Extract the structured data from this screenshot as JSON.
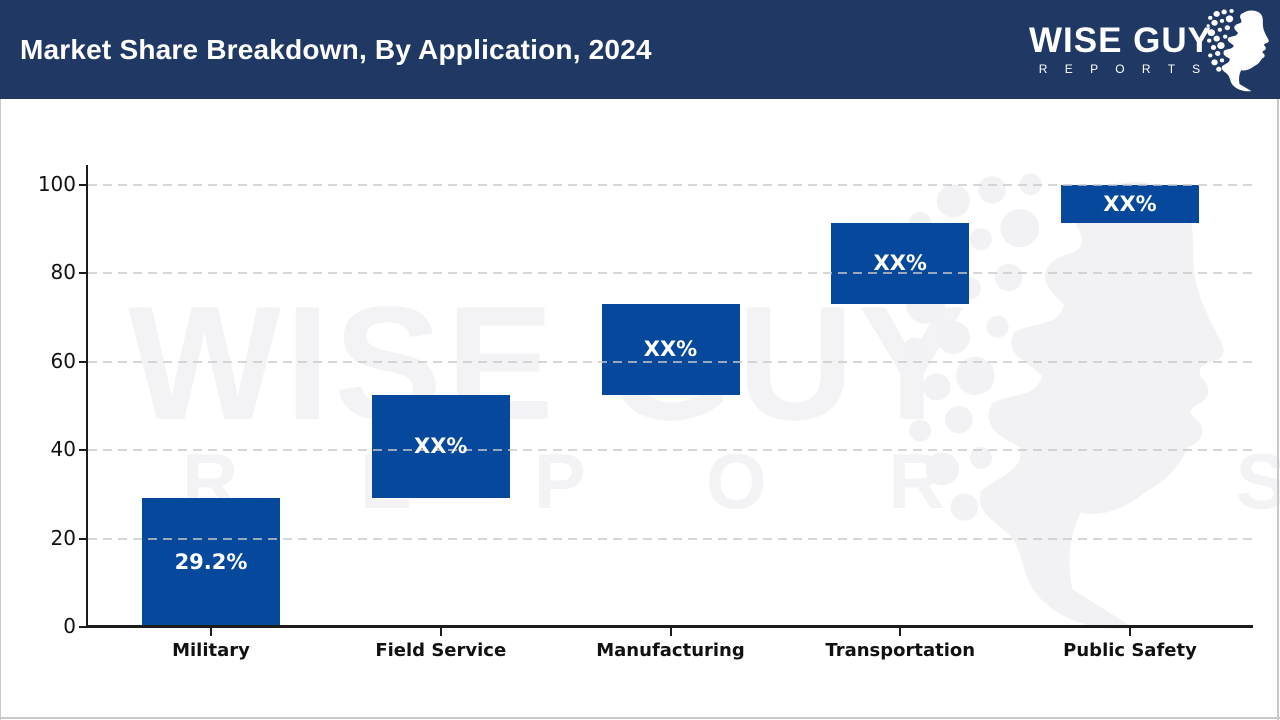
{
  "header": {
    "title": "Market Share Breakdown, By Application, 2024",
    "logo": {
      "line1": "WISE GUY",
      "line2": "R E P O R T S"
    }
  },
  "watermark": {
    "line1": "WISE GUY",
    "line2": "R E P O R T S"
  },
  "chart_data": {
    "type": "bar",
    "subtype": "waterfall",
    "title": "Market Share Breakdown, By Application, 2024",
    "categories": [
      "Military",
      "Field Service",
      "Manufacturing",
      "Transportation",
      "Public Safety"
    ],
    "segments": [
      {
        "category": "Military",
        "start": 0,
        "end": 29.2,
        "label": "29.2%"
      },
      {
        "category": "Field Service",
        "start": 29.2,
        "end": 52.5,
        "label": "XX%"
      },
      {
        "category": "Manufacturing",
        "start": 52.5,
        "end": 73.1,
        "label": "XX%"
      },
      {
        "category": "Transportation",
        "start": 73.1,
        "end": 91.4,
        "label": "XX%"
      },
      {
        "category": "Public Safety",
        "start": 91.4,
        "end": 100,
        "label": "XX%"
      }
    ],
    "y_ticks": [
      0,
      20,
      40,
      60,
      80,
      100
    ],
    "ylim": [
      0,
      105
    ],
    "xlabel": "",
    "ylabel": "",
    "grid": "horizontal-dashed",
    "legend": false,
    "bar_color": "#05489c",
    "bar_label_color": "#ffffff",
    "axis_color": "#1c1c1c",
    "tick_label_color": "#111111"
  },
  "colors": {
    "header_bg": "#203864",
    "header_text": "#ffffff",
    "watermark": "#f3f3f5",
    "grid": "#c9c9c9",
    "card_border": "#c8c8c8",
    "background": "#ffffff"
  }
}
